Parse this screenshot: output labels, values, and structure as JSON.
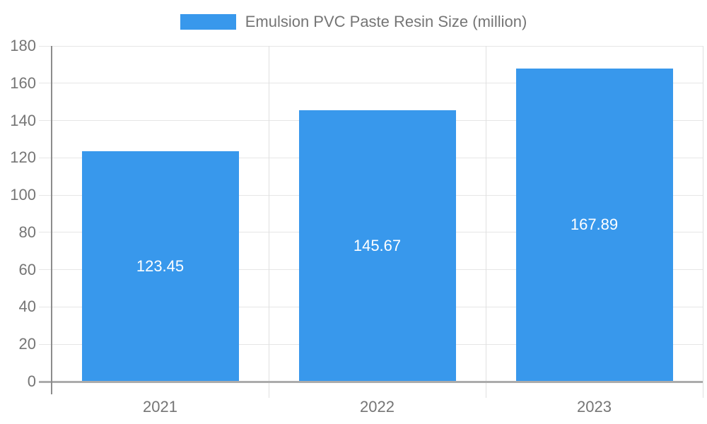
{
  "legend": {
    "label": "Emulsion PVC Paste Resin Size (million)"
  },
  "colors": {
    "bar": "#3898EC",
    "grid_line": "#E6E6E6",
    "category_line": "#E0E0E0",
    "y_axis_line": "#8C8C8C",
    "baseline": "#ABABAB",
    "tick_text": "#757575",
    "value_label_text": "#FFFFFF",
    "background": "#FFFFFF"
  },
  "chart_data": {
    "type": "bar",
    "title": "Emulsion PVC Paste Resin Size (million)",
    "categories": [
      "2021",
      "2022",
      "2023"
    ],
    "values": [
      123.45,
      145.67,
      167.89
    ],
    "value_labels": [
      "123.45",
      "145.67",
      "167.89"
    ],
    "xlabel": "",
    "ylabel": "",
    "ylim": [
      0,
      180
    ],
    "yticks": [
      0,
      20,
      40,
      60,
      80,
      100,
      120,
      140,
      160,
      180
    ],
    "grid": true,
    "legend_position": "top",
    "value_label_position": "inside-center"
  }
}
